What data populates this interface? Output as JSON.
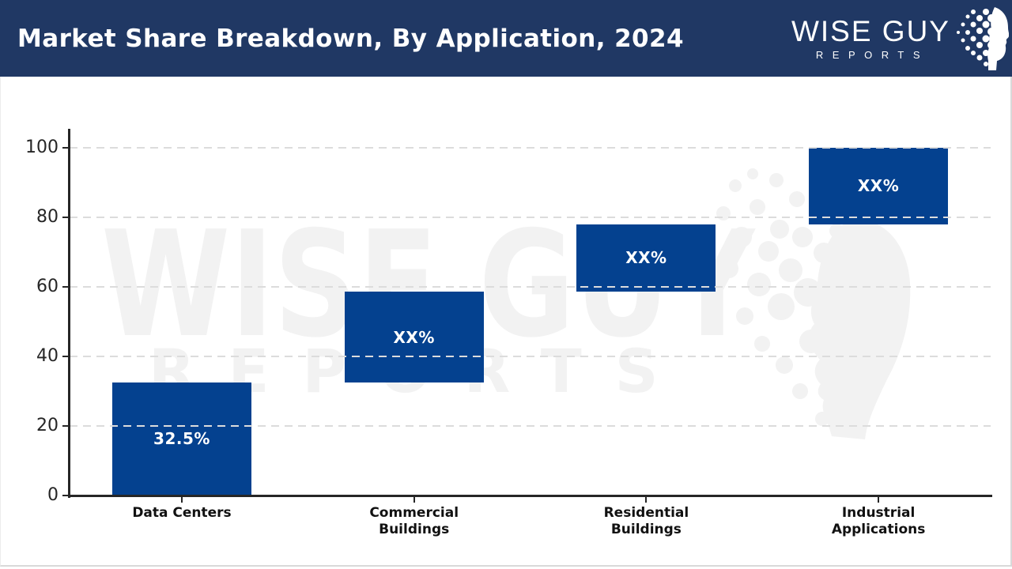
{
  "header": {
    "title": "Market Share Breakdown, By Application, 2024",
    "logo": {
      "wordmark": "WISE GUY",
      "subtext": "REPORTS"
    }
  },
  "watermark": {
    "wordmark": "WISE GUY",
    "subtext": "REPORTS"
  },
  "colors": {
    "header_bg": "#203864",
    "bar": "#04418f",
    "axis": "#262626",
    "grid": "#dcdcdc",
    "bar_label_text": "#ffffff",
    "category_label_text": "#111111",
    "watermark": "#f2f2f2"
  },
  "chart_data": {
    "type": "bar",
    "subtype": "waterfall",
    "title": "Market Share Breakdown, By Application, 2024",
    "xlabel": "",
    "ylabel": "",
    "ylim": [
      0,
      105
    ],
    "grid": "horizontal dashed",
    "legend": "none",
    "categories": [
      "Data Centers",
      "Commercial Buildings",
      "Residential Buildings",
      "Industrial Applications"
    ],
    "category_lines": [
      [
        "Data Centers"
      ],
      [
        "Commercial",
        "Buildings"
      ],
      [
        "Residential",
        "Buildings"
      ],
      [
        "Industrial",
        "Applications"
      ]
    ],
    "yticks": [
      0,
      20,
      40,
      60,
      80,
      100
    ],
    "segments": [
      {
        "category": "Data Centers",
        "start": 0,
        "end": 32.5,
        "label": "32.5%"
      },
      {
        "category": "Commercial Buildings",
        "start": 32.5,
        "end": 58.5,
        "label": "XX%"
      },
      {
        "category": "Residential Buildings",
        "start": 58.5,
        "end": 78,
        "label": "XX%"
      },
      {
        "category": "Industrial Applications",
        "start": 78,
        "end": 100,
        "label": "XX%"
      }
    ]
  }
}
